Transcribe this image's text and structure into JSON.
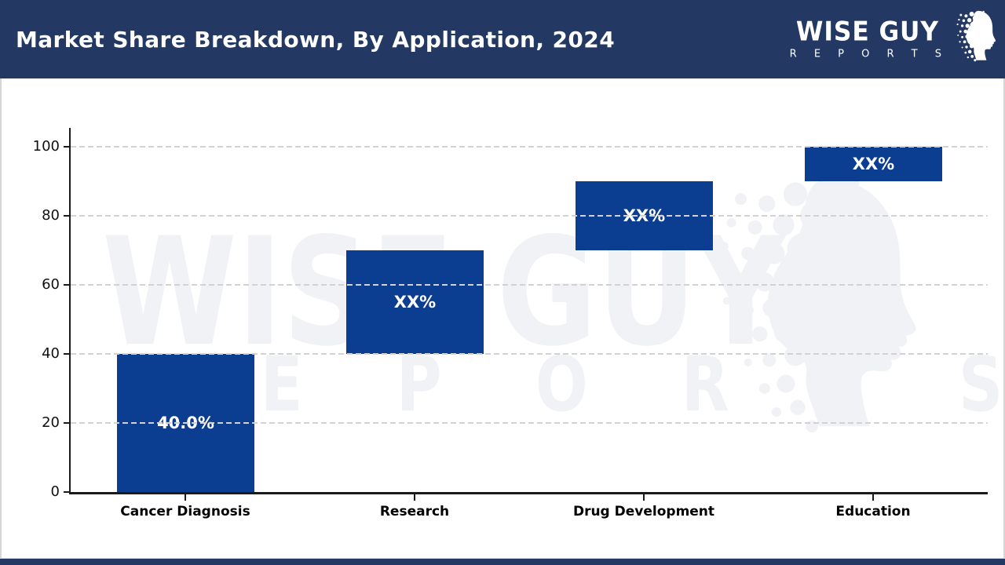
{
  "header": {
    "title": "Market Share Breakdown, By Application, 2024",
    "logo": {
      "line1": "WISE GUY",
      "line2": "R E P O R T S"
    }
  },
  "watermark": {
    "line1": "WISE GUY",
    "line2": "R E P O R T S"
  },
  "colors": {
    "header_bg": "#233862",
    "footer_bg": "#233862",
    "bar_blue": "#0b3d91",
    "watermark_gray": "#f1f2f5",
    "grid_gray": "#d2d2d2",
    "axis_black": "#1a1a1a"
  },
  "chart_data": {
    "type": "bar",
    "subtype": "waterfall",
    "title": "Market Share Breakdown, By Application, 2024",
    "categories": [
      "Cancer Diagnosis",
      "Research",
      "Drug Development",
      "Education"
    ],
    "segments": [
      {
        "category": "Cancer Diagnosis",
        "start": 0,
        "end": 40,
        "label": "40.0%"
      },
      {
        "category": "Research",
        "start": 40,
        "end": 70,
        "label": "XX%"
      },
      {
        "category": "Drug Development",
        "start": 70,
        "end": 90,
        "label": "XX%"
      },
      {
        "category": "Education",
        "start": 90,
        "end": 100,
        "label": "XX%"
      }
    ],
    "xlabel": "",
    "ylabel": "",
    "ylim": [
      0,
      100
    ],
    "yticks": [
      0,
      20,
      40,
      60,
      80,
      100
    ],
    "grid": "horizontal-dashed",
    "legend": "none",
    "bar_color": "#0b3d91",
    "bar_label_color": "#ffffff"
  }
}
